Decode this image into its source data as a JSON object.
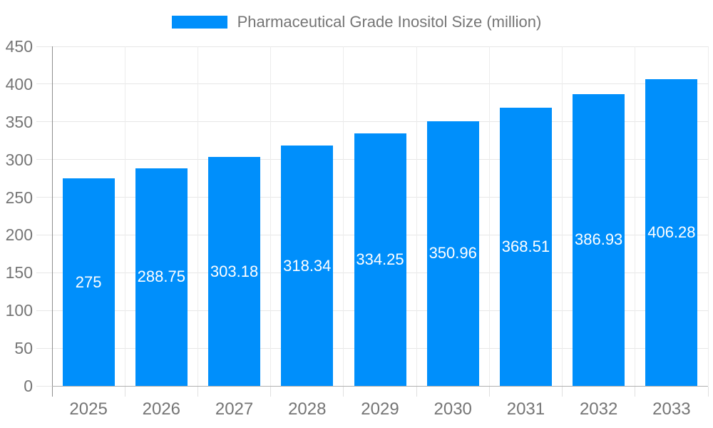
{
  "chart_data": {
    "type": "bar",
    "title": "Pharmaceutical Grade Inositol Size (million)",
    "categories": [
      "2025",
      "2026",
      "2027",
      "2028",
      "2029",
      "2030",
      "2031",
      "2032",
      "2033"
    ],
    "values": [
      275,
      288.75,
      303.18,
      318.34,
      334.25,
      350.96,
      368.51,
      386.93,
      406.28
    ],
    "value_labels": [
      "275",
      "288.75",
      "303.18",
      "318.34",
      "334.25",
      "350.96",
      "368.51",
      "386.93",
      "406.28"
    ],
    "xlabel": "",
    "ylabel": "",
    "ylim": [
      0,
      450
    ],
    "yticks": [
      0,
      50,
      100,
      150,
      200,
      250,
      300,
      350,
      400,
      450
    ],
    "grid": true,
    "legend_position": "top",
    "colors": {
      "bar": "#008FFB",
      "value_label": "#ffffff",
      "axis_label": "#757575",
      "grid_line": "#e7e7e7",
      "vertical_grid_line": "#ececec",
      "x_axis_line": "#b1b1b1",
      "y_axis_line": "#8e8e8e",
      "tick_line": "#e0e0e0"
    }
  }
}
